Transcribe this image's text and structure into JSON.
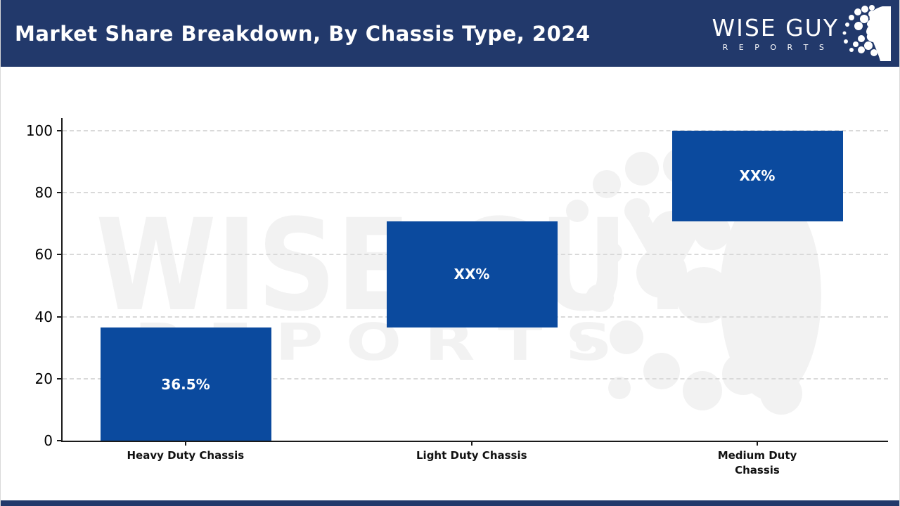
{
  "header": {
    "title": "Market Share Breakdown, By Chassis Type, 2024",
    "logo": {
      "line1": "WISE GUY",
      "line2": "R E P O R T S"
    }
  },
  "watermark": {
    "line1": "WISE GUY",
    "line2": "R E P O R T S"
  },
  "colors": {
    "header_bg": "#22396b",
    "header_text": "#ffffff",
    "bar": "#0b4a9e",
    "bar_label": "#ffffff",
    "grid": "#d9d9d9",
    "axis": "#1a1a1a",
    "watermark": "#f2f2f2",
    "footer_bg": "#22396b"
  },
  "chart_data": {
    "type": "bar",
    "subtype": "stacked-waterfall",
    "title": "Market Share Breakdown, By Chassis Type, 2024",
    "categories": [
      "Heavy Duty Chassis",
      "Light Duty Chassis",
      "Medium Duty Chassis"
    ],
    "series": [
      {
        "name": "Heavy Duty Chassis",
        "start": 0,
        "end": 36.5,
        "label": "36.5%"
      },
      {
        "name": "Light Duty Chassis",
        "start": 36.5,
        "end": 70.8,
        "label": "XX%"
      },
      {
        "name": "Medium Duty Chassis",
        "start": 70.8,
        "end": 100,
        "label": "XX%"
      }
    ],
    "xlabel": "",
    "ylabel": "",
    "ylim": [
      0,
      100
    ],
    "yticks": [
      0,
      20,
      40,
      60,
      80,
      100
    ],
    "grid": "horizontal-dashed",
    "legend": "none"
  }
}
